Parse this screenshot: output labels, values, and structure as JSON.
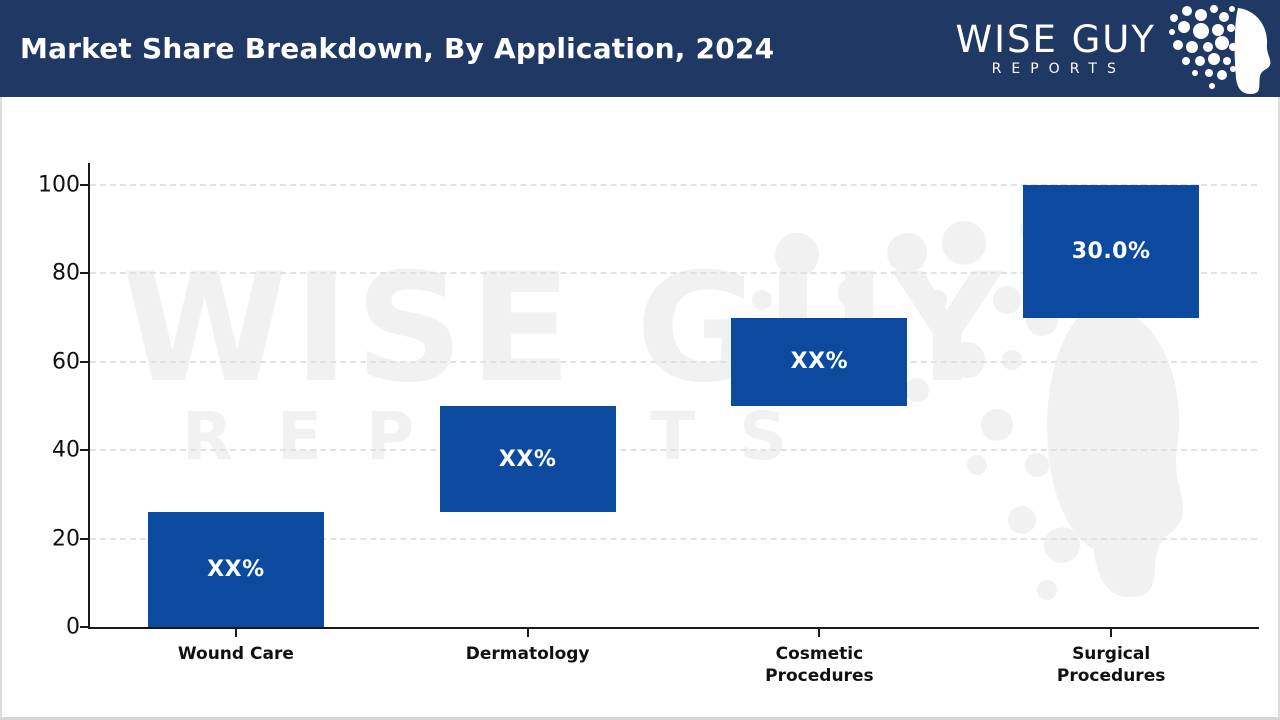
{
  "header": {
    "title": "Market Share Breakdown, By Application, 2024",
    "logo": {
      "wordmark": "WISE GUY",
      "subtext": "REPORTS"
    }
  },
  "watermark": {
    "wordmark": "WISE GUY",
    "subtext": "REPORTS"
  },
  "chart_data": {
    "type": "bar",
    "subtype": "floating-waterfall",
    "title": "Market Share Breakdown, By Application, 2024",
    "categories": [
      "Wound Care",
      "Dermatology",
      "Cosmetic Procedures",
      "Surgical Procedures"
    ],
    "segments": [
      {
        "category": "Wound Care",
        "start": 0,
        "end": 26,
        "label": "XX%"
      },
      {
        "category": "Dermatology",
        "start": 26,
        "end": 50,
        "label": "XX%"
      },
      {
        "category": "Cosmetic Procedures",
        "start": 50,
        "end": 70,
        "label": "XX%"
      },
      {
        "category": "Surgical Procedures",
        "start": 70,
        "end": 100,
        "label": "30.0%"
      }
    ],
    "ylim": [
      0,
      100
    ],
    "yticks": [
      0,
      20,
      40,
      60,
      80,
      100
    ],
    "grid": "horizontal-dashed",
    "legend": "none",
    "bar_color": "#0c4a9f",
    "bar_label_color": "#ffffff",
    "xlabel": "",
    "ylabel": ""
  },
  "colors": {
    "header_bg": "#203864",
    "bar": "#0c4a9f",
    "watermark": "#f1f1f1",
    "gridline": "#e2e2e2",
    "axis": "#1a1a1a",
    "page_border": "#dcdcdc"
  }
}
